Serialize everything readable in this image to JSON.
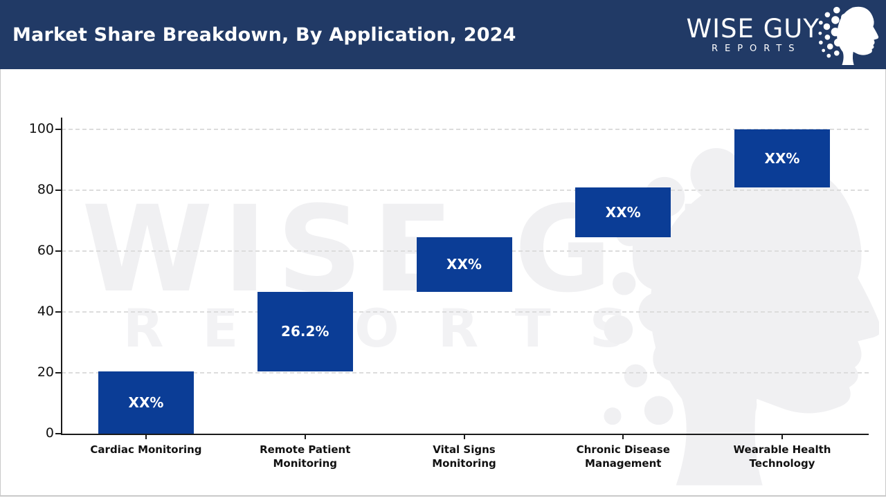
{
  "header": {
    "title": "Market Share Breakdown, By Application, 2024",
    "logo_line1": "WISE GUY",
    "logo_line2": "REPORTS",
    "background_color": "#213a66"
  },
  "watermark": {
    "line1": "WISE GUY",
    "line2": "REPORTS"
  },
  "chart_data": {
    "type": "bar",
    "subtype": "waterfall",
    "title": "Market Share Breakdown, By Application, 2024",
    "categories": [
      "Cardiac Monitoring",
      "Remote Patient\nMonitoring",
      "Vital Signs\nMonitoring",
      "Chronic Disease\nManagement",
      "Wearable Health\nTechnology"
    ],
    "segments": [
      {
        "category": "Cardiac Monitoring",
        "start": 0,
        "end": 20.5,
        "value": 20.5,
        "label": "XX%"
      },
      {
        "category": "Remote Patient Monitoring",
        "start": 20.5,
        "end": 46.7,
        "value": 26.2,
        "label": "26.2%"
      },
      {
        "category": "Vital Signs Monitoring",
        "start": 46.7,
        "end": 64.6,
        "value": 17.9,
        "label": "XX%"
      },
      {
        "category": "Chronic Disease Management",
        "start": 64.6,
        "end": 80.8,
        "value": 16.2,
        "label": "XX%"
      },
      {
        "category": "Wearable Health Technology",
        "start": 80.8,
        "end": 100,
        "value": 19.2,
        "label": "XX%"
      }
    ],
    "y_ticks": [
      0,
      20,
      40,
      60,
      80,
      100
    ],
    "ylim": [
      0,
      104
    ],
    "xlabel": "",
    "ylabel": "",
    "grid": "dashed-horizontal",
    "legend": "none",
    "bar_color": "#0b3d96",
    "bar_label_color": "#ffffff",
    "axis_color": "#1a1a1a",
    "grid_color": "#dcdcdc"
  }
}
